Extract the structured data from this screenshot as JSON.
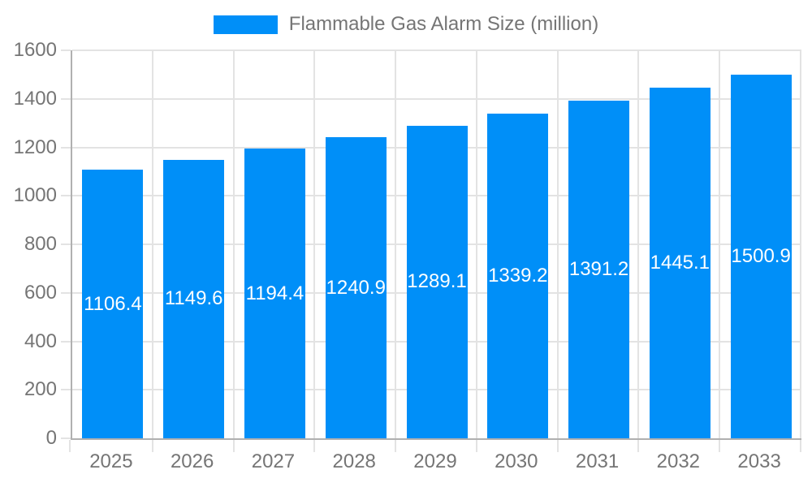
{
  "legend": {
    "label": "Flammable Gas Alarm Size (million)"
  },
  "chart_data": {
    "type": "bar",
    "title": "Flammable Gas Alarm Size (million)",
    "legend_label": "Flammable Gas Alarm Size (million)",
    "legend_position": "top",
    "categories": [
      "2025",
      "2026",
      "2027",
      "2028",
      "2029",
      "2030",
      "2031",
      "2032",
      "2033"
    ],
    "series": [
      {
        "name": "Flammable Gas Alarm Size (million)",
        "values": [
          1106.4,
          1149.6,
          1194.4,
          1240.9,
          1289.1,
          1339.2,
          1391.2,
          1445.1,
          1500.9
        ]
      }
    ],
    "values": [
      1106.4,
      1149.6,
      1194.4,
      1240.9,
      1289.1,
      1339.2,
      1391.2,
      1445.1,
      1500.9
    ],
    "bar_labels": [
      "1106.4",
      "1149.6",
      "1194.4",
      "1240.9",
      "1289.1",
      "1339.2",
      "1391.2",
      "1445.1",
      "1500.9"
    ],
    "xlabel": "",
    "ylabel": "",
    "ylim": [
      0,
      1600
    ],
    "yticks": [
      "0",
      "200",
      "400",
      "600",
      "800",
      "1000",
      "1200",
      "1400",
      "1600"
    ],
    "grid": true,
    "colors": {
      "bar": "#008ff8",
      "grid": "#e3e3e3",
      "axis": "#b0b0b0",
      "text": "#757575",
      "bar_label_text": "#ffffff",
      "background": "#ffffff"
    }
  }
}
